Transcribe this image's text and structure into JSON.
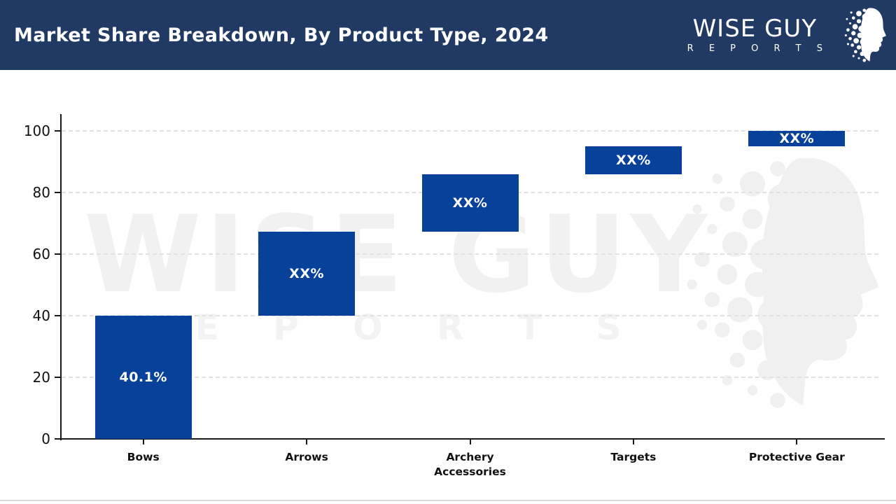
{
  "header": {
    "title": "Market Share Breakdown, By Product Type, 2024",
    "logo_line1": "WISE GUY",
    "logo_line2": "R E P O R T S"
  },
  "watermark": {
    "line1": "WISE GUY",
    "line2": "R E P O R T S"
  },
  "colors": {
    "header_bg": "#213a64",
    "bar": "#08419a",
    "grid": "#e1e1e1",
    "axis": "#1a1a1a",
    "value_label_text": "#ffffff"
  },
  "chart_data": {
    "type": "bar",
    "subtype": "waterfall (floating cumulative segments)",
    "title": "Market Share Breakdown, By Product Type, 2024",
    "categories": [
      "Bows",
      "Arrows",
      "Archery Accessories",
      "Targets",
      "Protective Gear"
    ],
    "segments": [
      {
        "category": "Bows",
        "start": 0,
        "end": 40.1,
        "label": "40.1%"
      },
      {
        "category": "Arrows",
        "start": 40.1,
        "end": 67.3,
        "label": "XX%"
      },
      {
        "category": "Archery Accessories",
        "start": 67.3,
        "end": 85.8,
        "label": "XX%"
      },
      {
        "category": "Targets",
        "start": 85.8,
        "end": 95.1,
        "label": "XX%"
      },
      {
        "category": "Protective Gear",
        "start": 95.1,
        "end": 100,
        "label": "XX%"
      }
    ],
    "bar_labels": [
      "40.1%",
      "XX%",
      "XX%",
      "XX%",
      "XX%"
    ],
    "ylim": [
      0,
      100
    ],
    "yticks": [
      0,
      20,
      40,
      60,
      80,
      100
    ],
    "xlabel": "",
    "ylabel": "",
    "grid": "horizontal dashed",
    "legend": "none"
  }
}
